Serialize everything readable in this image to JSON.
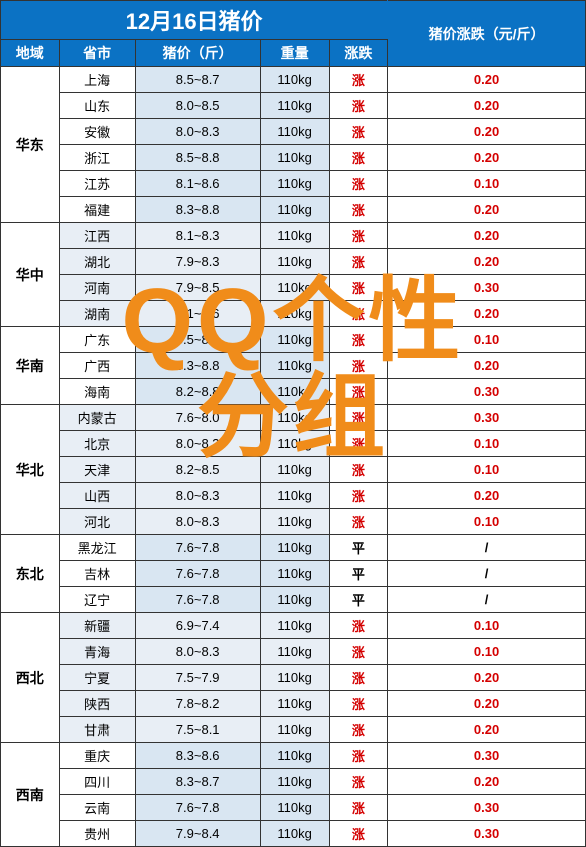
{
  "title": "12月16日猪价",
  "delta_header": "猪价涨跌（元/斤）",
  "columns": [
    "地域",
    "省市",
    "猪价（斤）",
    "重量",
    "涨跌"
  ],
  "overlay": {
    "line1": "QQ个性",
    "line2": "分组"
  },
  "styling": {
    "header_bg": "#0b72c4",
    "header_fg": "#ffffff",
    "cell_border": "#333333",
    "price_bg": "#d9e6f2",
    "alt_price_bg": "#e8eef5",
    "trend_up_color": "#d40000",
    "delta_color": "#d40000",
    "overlay_color": "#f08c1a",
    "overlay_fontsize": 92,
    "title_fontsize": 22,
    "body_fontsize": 13
  },
  "regions": [
    {
      "name": "华东",
      "alt": "a",
      "rows": [
        {
          "prov": "上海",
          "price": "8.5~8.7",
          "weight": "110kg",
          "trend": "涨",
          "delta": "0.20"
        },
        {
          "prov": "山东",
          "price": "8.0~8.5",
          "weight": "110kg",
          "trend": "涨",
          "delta": "0.20"
        },
        {
          "prov": "安徽",
          "price": "8.0~8.3",
          "weight": "110kg",
          "trend": "涨",
          "delta": "0.20"
        },
        {
          "prov": "浙江",
          "price": "8.5~8.8",
          "weight": "110kg",
          "trend": "涨",
          "delta": "0.20"
        },
        {
          "prov": "江苏",
          "price": "8.1~8.6",
          "weight": "110kg",
          "trend": "涨",
          "delta": "0.10"
        },
        {
          "prov": "福建",
          "price": "8.3~8.8",
          "weight": "110kg",
          "trend": "涨",
          "delta": "0.20"
        }
      ]
    },
    {
      "name": "华中",
      "alt": "b",
      "rows": [
        {
          "prov": "江西",
          "price": "8.1~8.3",
          "weight": "110kg",
          "trend": "涨",
          "delta": "0.20"
        },
        {
          "prov": "湖北",
          "price": "7.9~8.3",
          "weight": "110kg",
          "trend": "涨",
          "delta": "0.20"
        },
        {
          "prov": "河南",
          "price": "7.9~8.5",
          "weight": "110kg",
          "trend": "涨",
          "delta": "0.30"
        },
        {
          "prov": "湖南",
          "price": "8.1~8.6",
          "weight": "110kg",
          "trend": "涨",
          "delta": "0.20"
        }
      ]
    },
    {
      "name": "华南",
      "alt": "a",
      "rows": [
        {
          "prov": "广东",
          "price": "8.5~8.8",
          "weight": "110kg",
          "trend": "涨",
          "delta": "0.10"
        },
        {
          "prov": "广西",
          "price": "8.3~8.8",
          "weight": "110kg",
          "trend": "涨",
          "delta": "0.20"
        },
        {
          "prov": "海南",
          "price": "8.2~8.8",
          "weight": "110kg",
          "trend": "涨",
          "delta": "0.30"
        }
      ]
    },
    {
      "name": "华北",
      "alt": "b",
      "rows": [
        {
          "prov": "内蒙古",
          "price": "7.6~8.0",
          "weight": "110kg",
          "trend": "涨",
          "delta": "0.30"
        },
        {
          "prov": "北京",
          "price": "8.0~8.3",
          "weight": "110kg",
          "trend": "涨",
          "delta": "0.10"
        },
        {
          "prov": "天津",
          "price": "8.2~8.5",
          "weight": "110kg",
          "trend": "涨",
          "delta": "0.10"
        },
        {
          "prov": "山西",
          "price": "8.0~8.3",
          "weight": "110kg",
          "trend": "涨",
          "delta": "0.20"
        },
        {
          "prov": "河北",
          "price": "8.0~8.3",
          "weight": "110kg",
          "trend": "涨",
          "delta": "0.10"
        }
      ]
    },
    {
      "name": "东北",
      "alt": "a",
      "rows": [
        {
          "prov": "黑龙江",
          "price": "7.6~7.8",
          "weight": "110kg",
          "trend": "平",
          "delta": "/"
        },
        {
          "prov": "吉林",
          "price": "7.6~7.8",
          "weight": "110kg",
          "trend": "平",
          "delta": "/"
        },
        {
          "prov": "辽宁",
          "price": "7.6~7.8",
          "weight": "110kg",
          "trend": "平",
          "delta": "/"
        }
      ]
    },
    {
      "name": "西北",
      "alt": "b",
      "rows": [
        {
          "prov": "新疆",
          "price": "6.9~7.4",
          "weight": "110kg",
          "trend": "涨",
          "delta": "0.10"
        },
        {
          "prov": "青海",
          "price": "8.0~8.3",
          "weight": "110kg",
          "trend": "涨",
          "delta": "0.10"
        },
        {
          "prov": "宁夏",
          "price": "7.5~7.9",
          "weight": "110kg",
          "trend": "涨",
          "delta": "0.20"
        },
        {
          "prov": "陕西",
          "price": "7.8~8.2",
          "weight": "110kg",
          "trend": "涨",
          "delta": "0.20"
        },
        {
          "prov": "甘肃",
          "price": "7.5~8.1",
          "weight": "110kg",
          "trend": "涨",
          "delta": "0.20"
        }
      ]
    },
    {
      "name": "西南",
      "alt": "a",
      "rows": [
        {
          "prov": "重庆",
          "price": "8.3~8.6",
          "weight": "110kg",
          "trend": "涨",
          "delta": "0.30"
        },
        {
          "prov": "四川",
          "price": "8.3~8.7",
          "weight": "110kg",
          "trend": "涨",
          "delta": "0.20"
        },
        {
          "prov": "云南",
          "price": "7.6~7.8",
          "weight": "110kg",
          "trend": "涨",
          "delta": "0.30"
        },
        {
          "prov": "贵州",
          "price": "7.9~8.4",
          "weight": "110kg",
          "trend": "涨",
          "delta": "0.30"
        }
      ]
    }
  ]
}
